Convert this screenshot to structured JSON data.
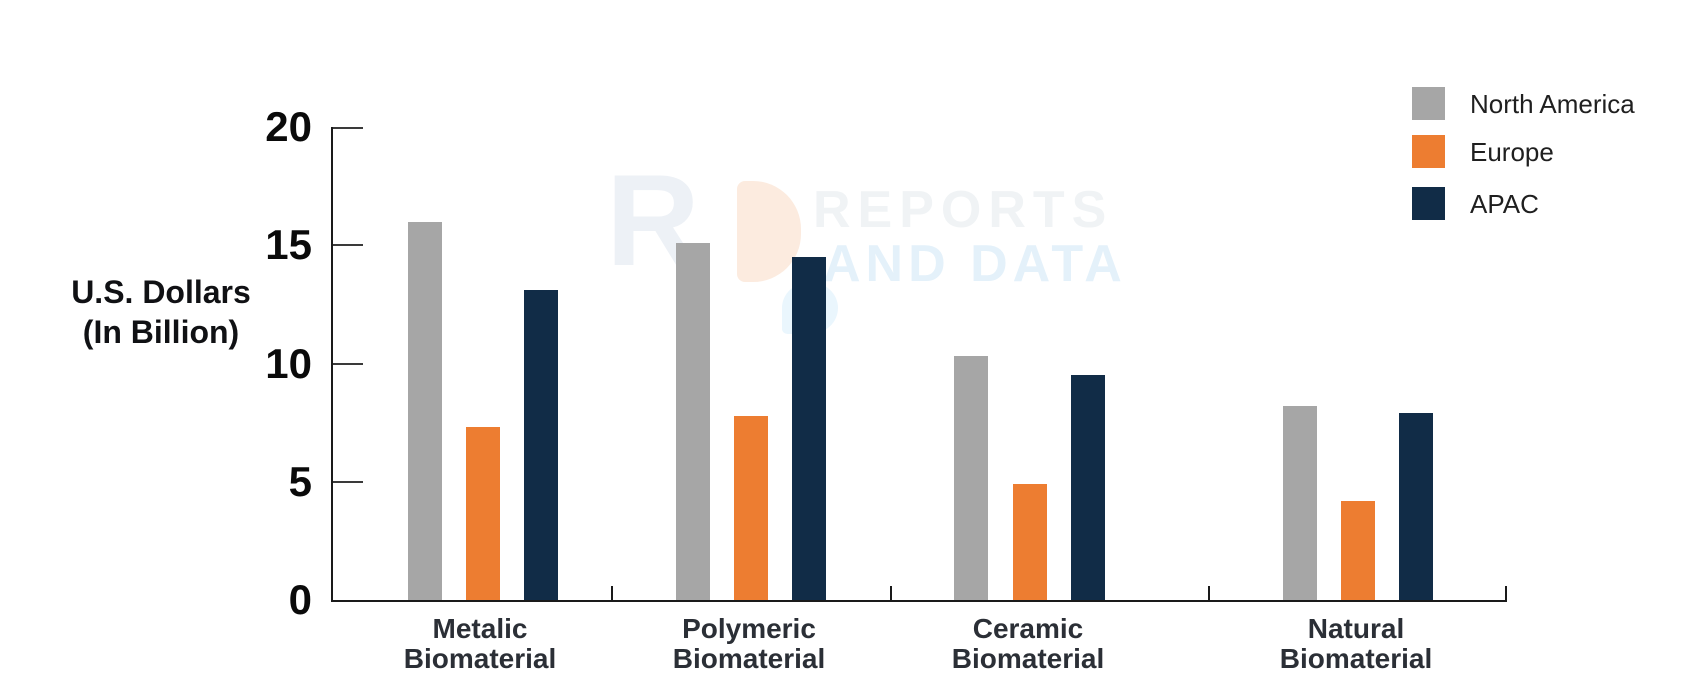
{
  "chart_data": {
    "type": "bar",
    "title": "",
    "ylabel_lines": [
      "U.S. Dollars",
      "(In Billion)"
    ],
    "ylabel": "U.S. Dollars (In Billion)",
    "ylim": [
      0,
      20
    ],
    "yticks": [
      20,
      15,
      10,
      5,
      0
    ],
    "grid": false,
    "legend_position": "top-right",
    "axis_color": "#1a1a1a",
    "categories": [
      "Metalic Biomaterial",
      "Polymeric Biomaterial",
      "Ceramic Biomaterial",
      "Natural Biomaterial"
    ],
    "category_label_lines": [
      [
        "Metalic",
        "Biomaterial"
      ],
      [
        "Polymeric",
        "Biomaterial"
      ],
      [
        "Ceramic",
        "Biomaterial"
      ],
      [
        "Natural",
        "Biomaterial"
      ]
    ],
    "series": [
      {
        "name": "North America",
        "color": "#a6a6a6",
        "values": [
          16.0,
          15.1,
          10.3,
          8.2
        ]
      },
      {
        "name": "Europe",
        "color": "#ed7d31",
        "values": [
          7.3,
          7.8,
          4.9,
          4.2
        ]
      },
      {
        "name": "APAC",
        "color": "#112c47",
        "values": [
          13.1,
          14.5,
          9.5,
          7.9
        ]
      }
    ]
  },
  "watermark": {
    "logo_letter": "R",
    "line1": "REPORTS",
    "line2": "AND DATA"
  }
}
